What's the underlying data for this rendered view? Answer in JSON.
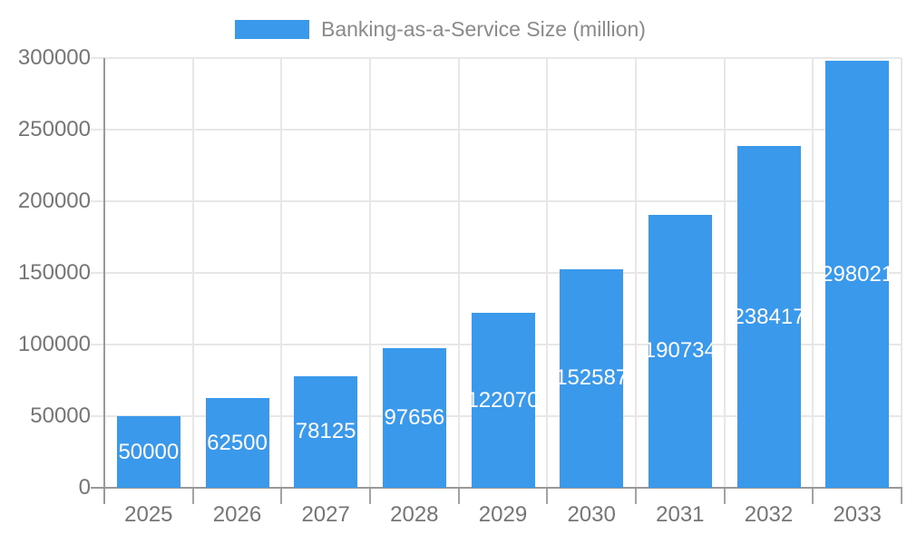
{
  "legend": {
    "label": "Banking-as-a-Service Size (million)"
  },
  "chart_data": {
    "type": "bar",
    "title": "Banking-as-a-Service Size (million)",
    "categories": [
      "2025",
      "2026",
      "2027",
      "2028",
      "2029",
      "2030",
      "2031",
      "2032",
      "2033"
    ],
    "series": [
      {
        "name": "Banking-as-a-Service Size (million)",
        "values": [
          50000,
          62500,
          78125,
          97656,
          122070,
          152587,
          190734,
          238417,
          298021
        ]
      }
    ],
    "bar_labels": [
      "50000",
      "62500",
      "78125",
      "97656",
      "122070",
      "152587",
      "190734",
      "238417",
      "298021"
    ],
    "xlabel": "",
    "ylabel": "",
    "ylim": [
      0,
      300000
    ],
    "ytick_interval": 50000,
    "ytick_labels": [
      "0",
      "50000",
      "100000",
      "150000",
      "200000",
      "250000",
      "300000"
    ],
    "grid": true,
    "legend_position": "top-center",
    "colors": {
      "bar": "#3B99EC",
      "bar_label_text": "#ffffff",
      "axis_line": "#999999",
      "gridline": "#e7e7e7",
      "tick_label": "#757575",
      "legend_text": "#8a8a8a",
      "background": "#ffffff"
    }
  }
}
